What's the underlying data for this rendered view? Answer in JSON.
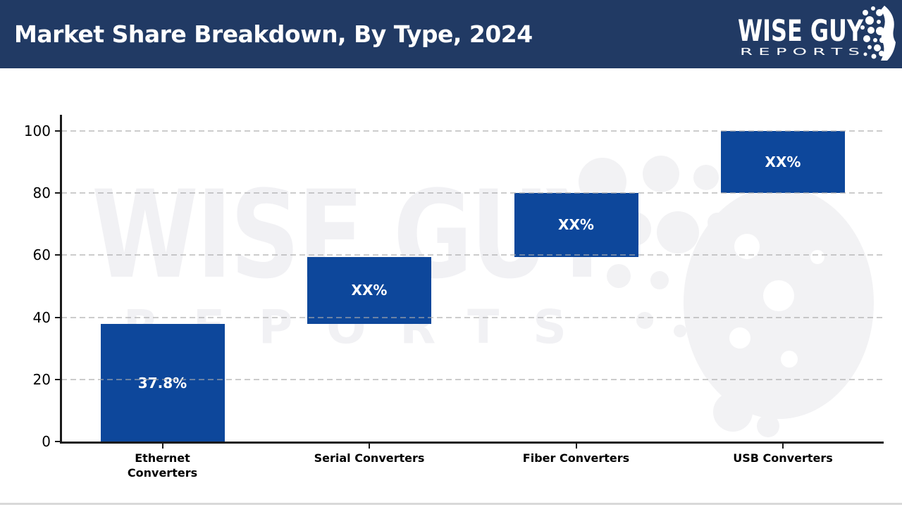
{
  "header": {
    "title": "Market Share Breakdown, By Type, 2024",
    "logo": {
      "line1": "WISE GUY",
      "line2": "R E P O R T S"
    }
  },
  "watermark": {
    "line1": "WISE GUY",
    "line2": "REPORTS"
  },
  "chart_data": {
    "type": "bar",
    "subtype": "waterfall",
    "title": "Market Share Breakdown, By Type, 2024",
    "categories": [
      "Ethernet Converters",
      "Serial Converters",
      "Fiber Converters",
      "USB Converters"
    ],
    "tick_labels": [
      "Ethernet\nConverters",
      "Serial Converters",
      "Fiber Converters",
      "USB Converters"
    ],
    "bars": [
      {
        "category": "Ethernet Converters",
        "start": 0,
        "end": 37.8,
        "label": "37.8%"
      },
      {
        "category": "Serial Converters",
        "start": 37.8,
        "end": 59.5,
        "label": "XX%"
      },
      {
        "category": "Fiber Converters",
        "start": 59.5,
        "end": 80,
        "label": "XX%"
      },
      {
        "category": "USB Converters",
        "start": 80,
        "end": 100,
        "label": "XX%"
      }
    ],
    "y_ticks": [
      0,
      20,
      40,
      60,
      80,
      100
    ],
    "ylim": [
      0,
      105
    ],
    "xlabel": "",
    "ylabel": "",
    "grid": "horizontal-dashed",
    "legend": "none",
    "bar_color": "#0d479b",
    "bar_label_color": "#ffffff",
    "axis_color": "#1a1a1a",
    "header_color": "#213a64",
    "watermark_color": "#f1f1f4"
  }
}
